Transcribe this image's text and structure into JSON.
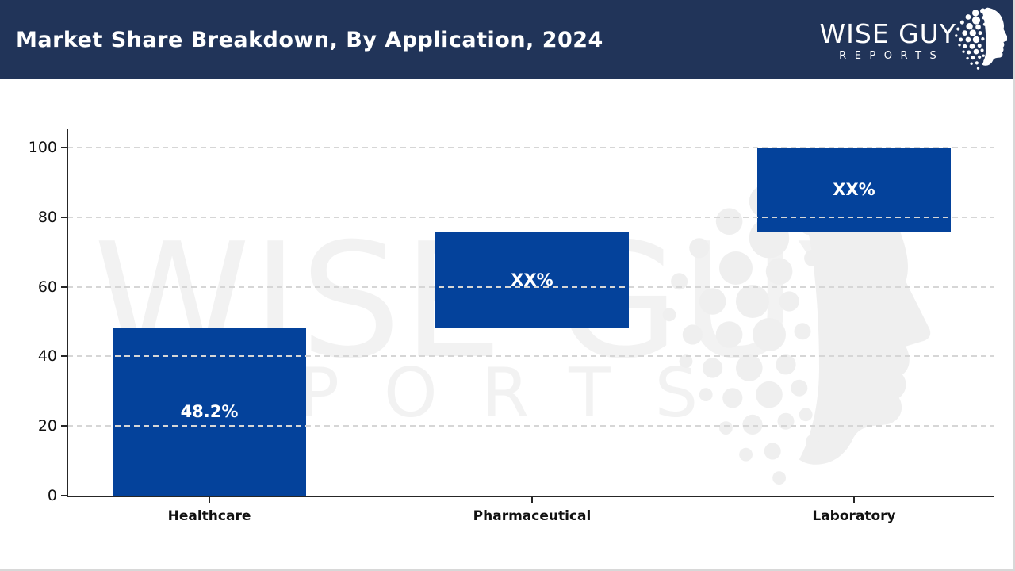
{
  "header": {
    "title": "Market Share Breakdown, By Application, 2024",
    "bg_color": "#213459",
    "logo": {
      "wordmark": "WISE GUY",
      "subtitle": "REPORTS"
    }
  },
  "watermark": {
    "wordmark": "WISE GUY",
    "subtitle": "REPORTS"
  },
  "chart_data": {
    "type": "bar",
    "subtype": "waterfall",
    "title": "Market Share Breakdown, By Application, 2024",
    "categories": [
      "Healthcare",
      "Pharmaceutical",
      "Laboratory"
    ],
    "segments": [
      {
        "category": "Healthcare",
        "start": 0,
        "end": 48.2,
        "label": "48.2%"
      },
      {
        "category": "Pharmaceutical",
        "start": 48.2,
        "end": 75.7,
        "label": "XX%"
      },
      {
        "category": "Laboratory",
        "start": 75.7,
        "end": 100,
        "label": "XX%"
      }
    ],
    "yticks": [
      0,
      20,
      40,
      60,
      80,
      100
    ],
    "ylim": [
      0,
      105
    ],
    "xlabel": "",
    "ylabel": "",
    "legend": "none",
    "grid": {
      "axis": "y",
      "style": "dashed",
      "color": "#d6d6d6",
      "drawn_above_bars": true
    },
    "bar_color": "#04429b",
    "bar_label_color": "#ffffff",
    "axis_color": "#262626",
    "tick_label_color": "#111111"
  }
}
